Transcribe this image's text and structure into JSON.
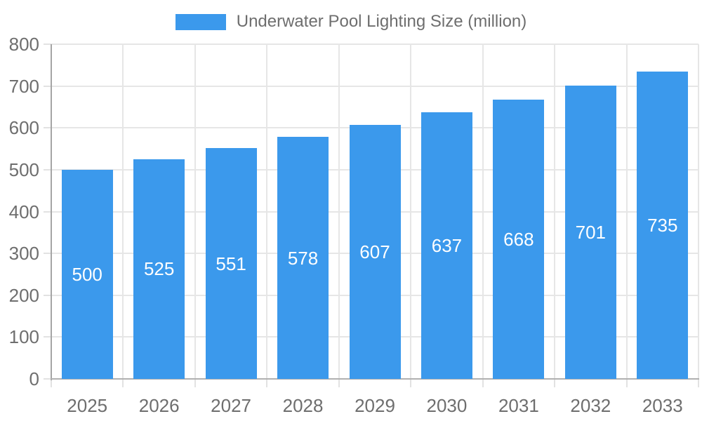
{
  "colors": {
    "bar": "#3b99ec",
    "grid": "#e6e6e6",
    "tick": "#e2e2e2",
    "y_axis_line": "#a5a5a5",
    "x_axis_line": "#b0b0b0",
    "axis_text": "#6e6e6e",
    "bar_value_text": "#ffffff",
    "background": "#ffffff"
  },
  "chart_data": {
    "type": "bar",
    "title": "Underwater Pool Lighting Size (million)",
    "series_name": "Underwater Pool Lighting Size (million)",
    "categories": [
      "2025",
      "2026",
      "2027",
      "2028",
      "2029",
      "2030",
      "2031",
      "2032",
      "2033"
    ],
    "values": [
      500,
      525,
      551,
      578,
      607,
      637,
      668,
      701,
      735
    ],
    "value_labels": [
      "500",
      "525",
      "551",
      "578",
      "607",
      "637",
      "668",
      "701",
      "735"
    ],
    "xlabel": "",
    "ylabel": "",
    "ylim": [
      0,
      800
    ],
    "ytick_step": 100,
    "yticks": [
      "0",
      "100",
      "200",
      "300",
      "400",
      "500",
      "600",
      "700",
      "800"
    ],
    "grid": true,
    "legend_position": "top-center",
    "value_label_position": "inside-middle",
    "bar_color": "#3b99ec"
  }
}
